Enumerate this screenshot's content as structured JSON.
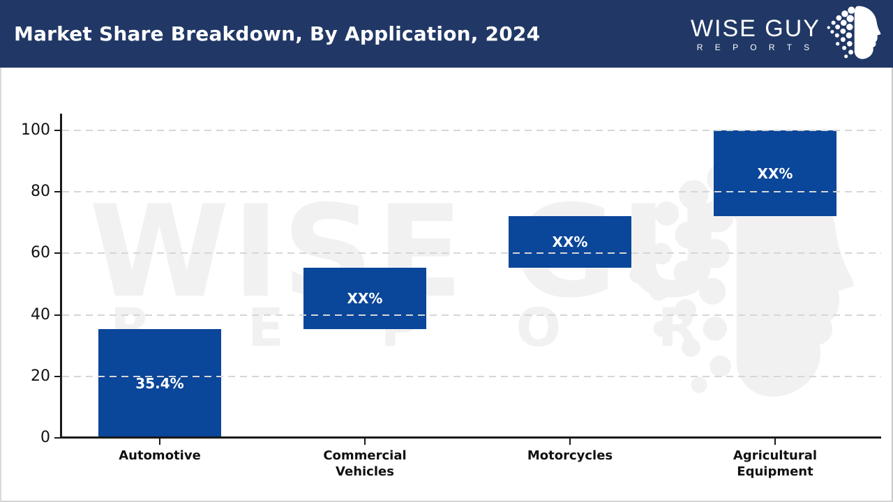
{
  "header": {
    "title": "Market Share Breakdown, By Application, 2024",
    "bg_color": "#213866",
    "logo": {
      "line1": "WISE GUY",
      "line2": "R E P O R T S"
    }
  },
  "watermark": {
    "line1": "WISE GUY",
    "line2": "R E P O R T S"
  },
  "chart_data": {
    "type": "bar",
    "subtype": "floating-waterfall-bars",
    "title": "Market Share Breakdown, By Application, 2024",
    "categories": [
      "Automotive",
      "Commercial\nVehicles",
      "Motorcycles",
      "Agricultural\nEquipment"
    ],
    "series": [
      {
        "category": "Automotive",
        "start": 0,
        "end": 35.4,
        "label": "35.4%"
      },
      {
        "category": "Commercial Vehicles",
        "start": 35.4,
        "end": 55.4,
        "label": "XX%"
      },
      {
        "category": "Motorcycles",
        "start": 55.4,
        "end": 72,
        "label": "XX%"
      },
      {
        "category": "Agricultural Equipment",
        "start": 72,
        "end": 100,
        "label": "XX%"
      }
    ],
    "xlabel": "",
    "ylabel": "",
    "yticks": [
      0,
      20,
      40,
      60,
      80,
      100
    ],
    "ylim": [
      0,
      105
    ],
    "bar_color": "#0A4699",
    "bar_label_color": "#FFFFFF",
    "grid": "horizontal-dashed",
    "gridline_color": "#D8D8D8",
    "axis_color": "#1A1A1A",
    "legend": "none"
  }
}
